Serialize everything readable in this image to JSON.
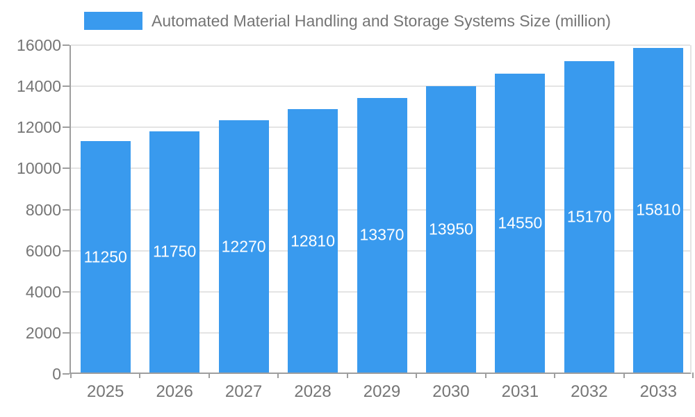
{
  "chart_data": {
    "type": "bar",
    "title": "Automated Material Handling and Storage Systems Size (million)",
    "legend": [
      "Automated Material Handling and Storage Systems Size (million)"
    ],
    "legend_position": "top",
    "categories": [
      "2025",
      "2026",
      "2027",
      "2028",
      "2029",
      "2030",
      "2031",
      "2032",
      "2033"
    ],
    "values": [
      11250,
      11750,
      12270,
      12810,
      13370,
      13950,
      14550,
      15170,
      15810
    ],
    "xlabel": "",
    "ylabel": "",
    "ylim": [
      0,
      16000
    ],
    "y_ticks": [
      0,
      2000,
      4000,
      6000,
      8000,
      10000,
      12000,
      14000,
      16000
    ],
    "grid": true,
    "value_labels_inside_bars": true,
    "colors": {
      "bar": "#399aee",
      "bar_label_text": "#ffffff",
      "axis_text": "#757575",
      "legend_text": "#757575",
      "gridline": "#e4e4e4",
      "axis_line": "#9e9e9e",
      "background": "#ffffff"
    }
  }
}
